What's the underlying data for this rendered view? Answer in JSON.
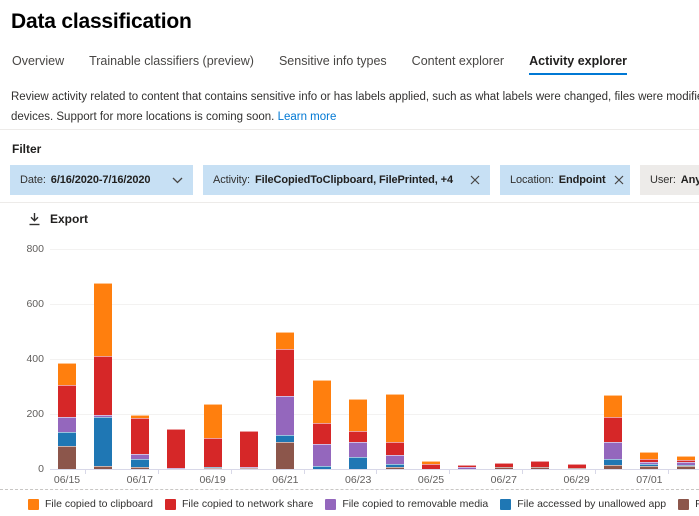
{
  "page": {
    "title": "Data classification"
  },
  "tabs": [
    {
      "label": "Overview",
      "active": false
    },
    {
      "label": "Trainable classifiers (preview)",
      "active": false
    },
    {
      "label": "Sensitive info types",
      "active": false
    },
    {
      "label": "Content explorer",
      "active": false
    },
    {
      "label": "Activity explorer",
      "active": true
    }
  ],
  "description": {
    "line1": "Review activity related to content that contains sensitive info or has labels applied, such as what labels were changed, files were modified, and",
    "line2": "devices. Support for more locations is coming soon.",
    "learn_more": "Learn more"
  },
  "filter": {
    "heading": "Filter",
    "pills": [
      {
        "label": "Date:",
        "value": "6/16/2020-7/16/2020",
        "icon": "chevron-down",
        "style": "blue"
      },
      {
        "label": "Activity:",
        "value": "FileCopiedToClipboard, FilePrinted, +4",
        "icon": "close",
        "style": "blue"
      },
      {
        "label": "Location:",
        "value": "Endpoint",
        "icon": "close",
        "style": "blue"
      },
      {
        "label": "User:",
        "value": "Any",
        "icon": "none",
        "style": "gray"
      }
    ]
  },
  "toolbar": {
    "export_label": "Export"
  },
  "colors": {
    "accent": "#0078d4",
    "pill_blue": "#c7e0f4",
    "pill_gray": "#edebe9"
  },
  "chart_data": {
    "type": "bar",
    "stacked": true,
    "title": "",
    "xlabel": "",
    "ylabel": "",
    "ylim": [
      0,
      800
    ],
    "yticks": [
      0,
      200,
      400,
      600,
      800
    ],
    "grid": true,
    "legend_position": "bottom",
    "x": [
      "06/15",
      "06/16",
      "06/17",
      "06/18",
      "06/19",
      "06/20",
      "06/21",
      "06/22",
      "06/23",
      "06/24",
      "06/25",
      "06/26",
      "06/27",
      "06/28",
      "06/29",
      "06/30",
      "07/01",
      "07/02"
    ],
    "x_tick_labels": [
      "06/15",
      "06/17",
      "06/19",
      "06/21",
      "06/23",
      "06/25",
      "06/27",
      "06/29",
      "07/01"
    ],
    "series": [
      {
        "name": "File printed",
        "color": "#8c564b",
        "values": [
          85,
          10,
          8,
          0,
          5,
          5,
          100,
          0,
          0,
          8,
          0,
          0,
          8,
          8,
          2,
          15,
          10,
          12
        ]
      },
      {
        "name": "File accessed by unallowed app",
        "color": "#1f77b4",
        "values": [
          50,
          180,
          30,
          0,
          3,
          0,
          25,
          10,
          45,
          12,
          0,
          0,
          0,
          0,
          0,
          22,
          10,
          4
        ]
      },
      {
        "name": "File copied to removable media",
        "color": "#9467bd",
        "values": [
          55,
          5,
          18,
          5,
          0,
          3,
          140,
          80,
          55,
          30,
          0,
          6,
          0,
          0,
          0,
          63,
          6,
          8
        ]
      },
      {
        "name": "File copied to network share",
        "color": "#d62728",
        "values": [
          115,
          215,
          128,
          140,
          105,
          132,
          170,
          78,
          37,
          50,
          18,
          10,
          14,
          20,
          18,
          90,
          12,
          10
        ]
      },
      {
        "name": "File copied to clipboard",
        "color": "#ff7f0e",
        "values": [
          80,
          265,
          12,
          0,
          125,
          0,
          65,
          154,
          118,
          172,
          10,
          0,
          0,
          0,
          0,
          80,
          24,
          14
        ]
      }
    ]
  }
}
